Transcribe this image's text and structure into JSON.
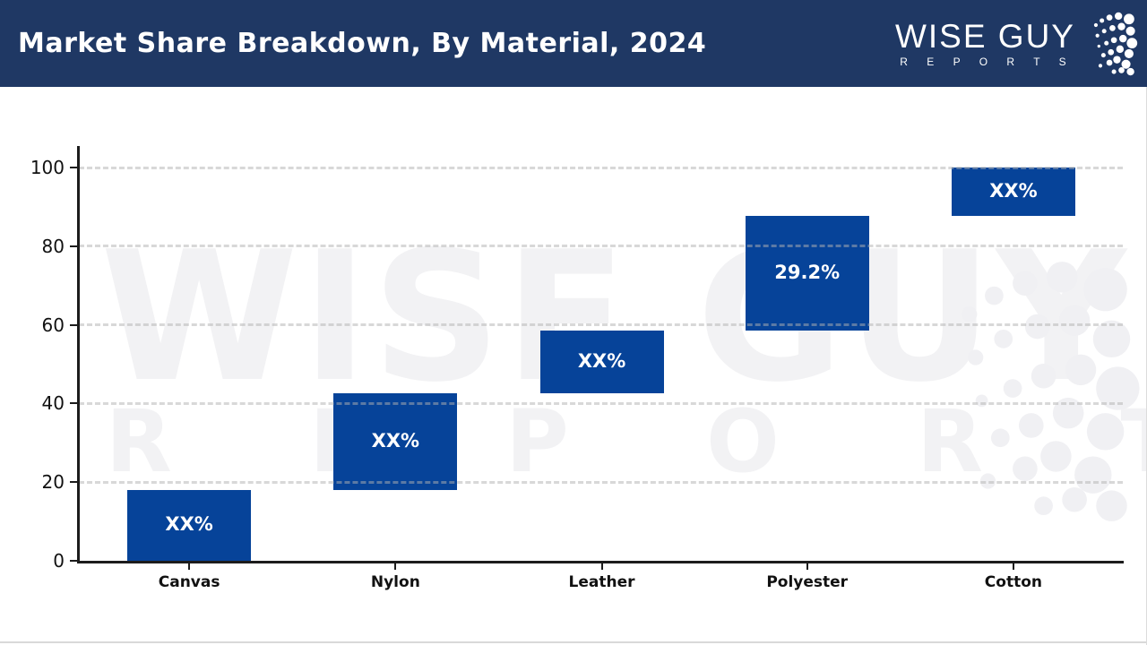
{
  "header": {
    "title": "Market Share Breakdown, By Material, 2024",
    "background_color": "#1F3864",
    "logo": {
      "line1": "WISE GUY",
      "line2": "R E P O R T S"
    }
  },
  "watermark": {
    "line1": "WISE GUY",
    "line2": "R E P O R T S"
  },
  "chart_data": {
    "type": "bar",
    "subtype": "waterfall-floating-bars",
    "title": "Market Share Breakdown, By Material, 2024",
    "categories": [
      "Canvas",
      "Nylon",
      "Leather",
      "Polyester",
      "Cotton"
    ],
    "segments": [
      {
        "category": "Canvas",
        "start": 0,
        "end": 18,
        "label": "XX%"
      },
      {
        "category": "Nylon",
        "start": 18,
        "end": 42.5,
        "label": "XX%"
      },
      {
        "category": "Leather",
        "start": 42.5,
        "end": 58.5,
        "label": "XX%"
      },
      {
        "category": "Polyester",
        "start": 58.5,
        "end": 87.7,
        "label": "29.2%"
      },
      {
        "category": "Cotton",
        "start": 87.7,
        "end": 100,
        "label": "XX%"
      }
    ],
    "xlabel": "",
    "ylabel": "",
    "ylim": [
      0,
      105.5
    ],
    "yticks": [
      0,
      20,
      40,
      60,
      80,
      100
    ],
    "gridline_values": [
      20,
      40,
      60,
      80,
      100
    ],
    "grid": "dashed horizontal, drawn over bars",
    "legend": null,
    "bar_color": "#064399",
    "bar_label_color": "#ffffff",
    "gridline_color": "#d8d8d8"
  }
}
